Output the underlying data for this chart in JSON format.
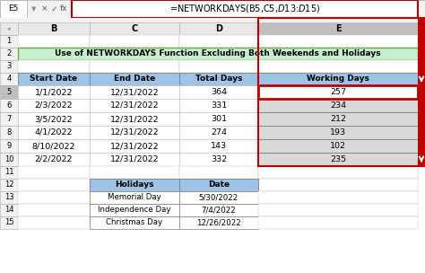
{
  "formula_bar_cell": "E5",
  "formula_bar_formula": "=NETWORKDAYS(B5,C5,$D$13:$D$15)",
  "title": "Use of NETWORKDAYS Function Excluding Both Weekends and Holidays",
  "title_bg": "#c6efce",
  "title_border": "#70ad47",
  "main_table_headers": [
    "Start Date",
    "End Date",
    "Total Days",
    "Working Days"
  ],
  "main_table_header_bg": "#9dc3e6",
  "main_table_data": [
    [
      "1/1/2022",
      "12/31/2022",
      "364",
      "257"
    ],
    [
      "2/3/2022",
      "12/31/2022",
      "331",
      "234"
    ],
    [
      "3/5/2022",
      "12/31/2022",
      "301",
      "212"
    ],
    [
      "4/1/2022",
      "12/31/2022",
      "274",
      "193"
    ],
    [
      "8/10/2022",
      "12/31/2022",
      "143",
      "102"
    ],
    [
      "2/2/2022",
      "12/31/2022",
      "332",
      "235"
    ]
  ],
  "working_days_col_bg": "#d9d9d9",
  "holidays_table_headers": [
    "Holidays",
    "Date"
  ],
  "holidays_table_header_bg": "#9dc3e6",
  "holidays_data": [
    [
      "Memorial Day",
      "5/30/2022"
    ],
    [
      "Independence Day",
      "7/4/2022"
    ],
    [
      "Christmas Day",
      "12/26/2022"
    ]
  ],
  "red_color": "#c00000",
  "col_header_bg": "#e8e8e8",
  "col_e_header_bg": "#bfbfbf",
  "row_num_bg": "#f2f2f2",
  "row_num_highlight_bg": "#bfbfbf",
  "formula_bar_bg": "#f2f2f2",
  "white": "#ffffff",
  "cell_border": "#c0c0c0",
  "table_border": "#7f7f7f"
}
